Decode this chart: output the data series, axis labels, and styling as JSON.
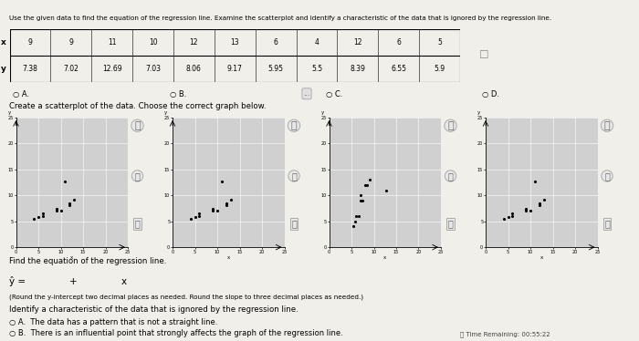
{
  "title": "Use the given data to find the equation of the regression line. Examine the scatterplot and identify a characteristic of the data that is ignored by the regression line.",
  "x_data": [
    9,
    9,
    11,
    10,
    12,
    13,
    6,
    4,
    12,
    6,
    5
  ],
  "y_data": [
    7.38,
    7.02,
    12.69,
    7.03,
    8.06,
    9.17,
    5.95,
    5.5,
    8.39,
    6.55,
    5.9
  ],
  "x_row": [
    "9",
    "9",
    "11",
    "10",
    "12",
    "13",
    "6",
    "4",
    "12",
    "6",
    "5"
  ],
  "y_row": [
    "7.38",
    "7.02",
    "12.69",
    "7.03",
    "8.06",
    "9.17",
    "5.95",
    "5.5",
    "8.39",
    "6.55",
    "5.9"
  ],
  "section1": "Create a scatterplot of the data. Choose the correct graph below.",
  "graph_labels": [
    "A.",
    "B.",
    "C.",
    "D."
  ],
  "find_eq_text": "Find the equation of the regression line.",
  "round_note": "(Round the y-intercept two decimal places as needed. Round the slope to three decimal places as needed.)",
  "identify_text": "Identify a characteristic of the data that is ignored by the regression line.",
  "option_A": "A.  The data has a pattern that is not a straight line.",
  "option_B": "B.  There is an influential point that strongly affects the graph of the regression line.",
  "bg_color": "#f0efea",
  "plot_bg": "#d0d0d0",
  "scatter_configs": [
    {
      "x": [
        9,
        9,
        11,
        10,
        12,
        13,
        6,
        4,
        12,
        6,
        5
      ],
      "y": [
        7.38,
        7.02,
        12.69,
        7.03,
        8.06,
        9.17,
        5.95,
        5.5,
        8.39,
        6.55,
        5.9
      ]
    },
    {
      "x": [
        9,
        9,
        11,
        10,
        12,
        13,
        6,
        4,
        12,
        6,
        5
      ],
      "y": [
        7.38,
        7.02,
        12.69,
        7.03,
        8.06,
        9.17,
        5.95,
        5.5,
        8.39,
        6.55,
        5.9
      ]
    },
    {
      "x": [
        7.38,
        7.02,
        12.69,
        7.03,
        8.06,
        9.17,
        5.95,
        5.5,
        8.39,
        6.55,
        5.9
      ],
      "y": [
        9,
        9,
        11,
        10,
        12,
        13,
        6,
        4,
        12,
        6,
        5
      ]
    },
    {
      "x": [
        9,
        9,
        11,
        10,
        12,
        13,
        6,
        4,
        12,
        6,
        5
      ],
      "y": [
        7.38,
        7.02,
        12.69,
        7.03,
        8.06,
        9.17,
        5.95,
        5.5,
        8.39,
        6.55,
        5.9
      ]
    }
  ]
}
